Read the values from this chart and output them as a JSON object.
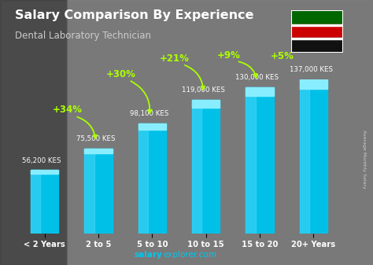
{
  "title": "Salary Comparison By Experience",
  "subtitle": "Dental Laboratory Technician",
  "categories": [
    "< 2 Years",
    "2 to 5",
    "5 to 10",
    "10 to 15",
    "15 to 20",
    "20+ Years"
  ],
  "values": [
    56200,
    75500,
    98100,
    119000,
    130000,
    137000
  ],
  "labels": [
    "56,200 KES",
    "75,500 KES",
    "98,100 KES",
    "119,000 KES",
    "130,000 KES",
    "137,000 KES"
  ],
  "pct_changes": [
    "+34%",
    "+30%",
    "+21%",
    "+9%",
    "+5%"
  ],
  "bar_color": "#00BFEE",
  "bar_face_color": "#40D8F8",
  "bar_top_color": "#88EEFF",
  "pct_color": "#AAFF00",
  "label_color": "#FFFFFF",
  "bg_color": "#5a5a5a",
  "title_color": "#FFFFFF",
  "subtitle_color": "#DDDDDD",
  "footer_left": "salary",
  "footer_right": "explorer.com",
  "ylabel": "Average Monthly Salary",
  "xticklabel_colors": [
    "#FFFFFF",
    "#FFFFFF",
    "#FFFFFF",
    "#FFFFFF",
    "#FFFFFF",
    "#FFFFFF"
  ],
  "xtick_bold": [
    true,
    true,
    true,
    true,
    true,
    true
  ]
}
